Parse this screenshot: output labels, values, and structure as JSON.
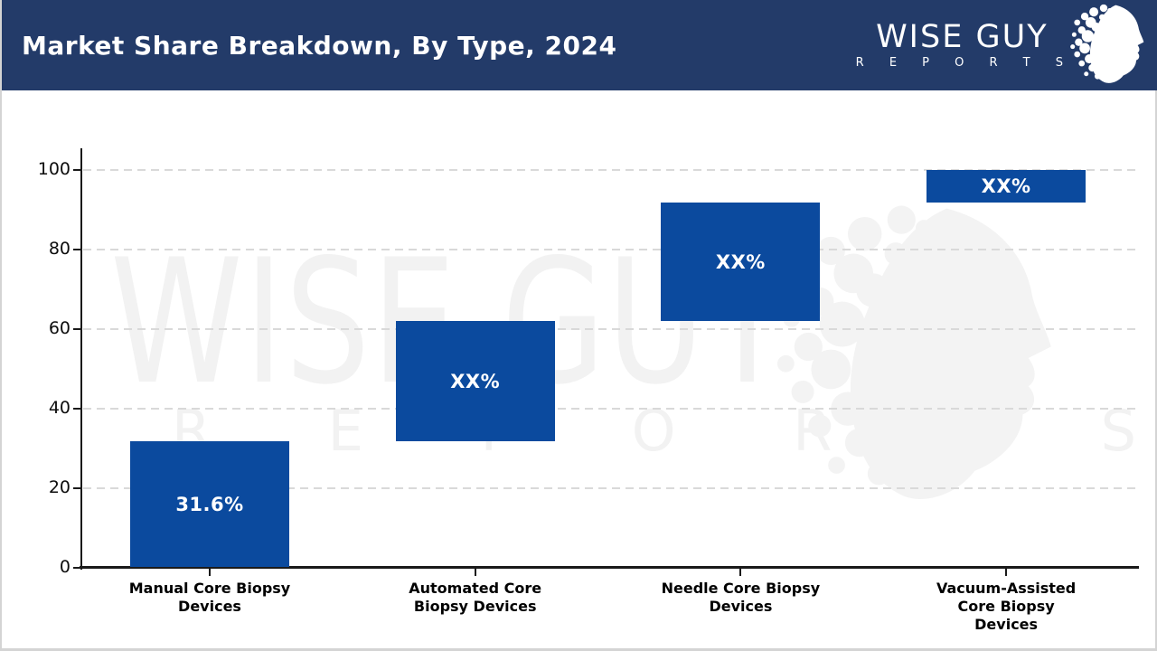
{
  "header": {
    "title": "Market Share Breakdown, By Type, 2024",
    "logo": {
      "line1": "WISE GUY",
      "line2": "R E P O R T S"
    }
  },
  "watermark": {
    "line1": "WISE GUY",
    "line2": "R E P O R T S"
  },
  "colors": {
    "header_bg": "#233b69",
    "bar": "#0b4a9e",
    "bar_label": "#ffffff",
    "grid": "#d9d9d9",
    "axis": "#1a1a1a",
    "watermark": "#f2f2f2",
    "title_text": "#ffffff"
  },
  "chart_data": {
    "type": "bar",
    "subtype": "waterfall",
    "title": "Market Share Breakdown, By Type, 2024",
    "xlabel": "",
    "ylabel": "",
    "ylim": [
      0,
      100
    ],
    "yticks": [
      0,
      20,
      40,
      60,
      80,
      100
    ],
    "grid": "horizontal-dashed",
    "legend": null,
    "categories": [
      "Manual Core Biopsy Devices",
      "Automated Core Biopsy Devices",
      "Needle Core Biopsy Devices",
      "Vacuum-Assisted Core Biopsy Devices"
    ],
    "category_label_lines": [
      [
        "Manual Core Biopsy",
        "Devices"
      ],
      [
        "Automated Core",
        "Biopsy Devices"
      ],
      [
        "Needle Core Biopsy",
        "Devices"
      ],
      [
        "Vacuum-Assisted",
        "Core Biopsy",
        "Devices"
      ]
    ],
    "segments": [
      {
        "category": "Manual Core Biopsy Devices",
        "start": 0,
        "end": 31.6,
        "label": "31.6%"
      },
      {
        "category": "Automated Core Biopsy Devices",
        "start": 31.6,
        "end": 62.0,
        "label": "XX%"
      },
      {
        "category": "Needle Core Biopsy Devices",
        "start": 62.0,
        "end": 91.6,
        "label": "XX%"
      },
      {
        "category": "Vacuum-Assisted Core Biopsy Devices",
        "start": 91.6,
        "end": 100,
        "label": "XX%"
      }
    ]
  }
}
